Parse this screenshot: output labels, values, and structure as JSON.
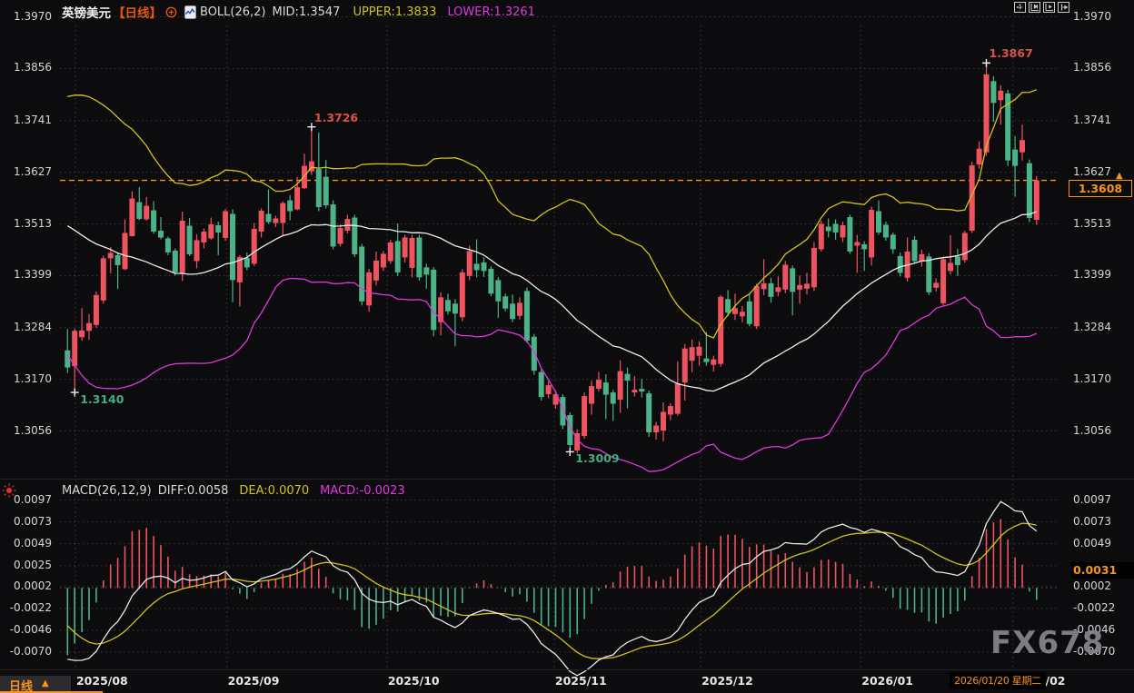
{
  "header": {
    "symbol": "英镑美元",
    "period_tag": "【日线】",
    "indicator": "BOLL(26,2)",
    "mid_label": "MID:1.3547",
    "upper_label": "UPPER:1.3833",
    "lower_label": "LOWER:1.3261"
  },
  "toolbar": {
    "icons": [
      "pan-icon",
      "zoom-x-left-icon",
      "zoom-x-play-icon",
      "pan-right-icon"
    ]
  },
  "macd_header": {
    "indicator": "MACD(26,12,9)",
    "diff_label": "DIFF:0.0058",
    "dea_label": "DEA:0.0070",
    "macd_label": "MACD:-0.0023"
  },
  "axes": {
    "price_ticks": [
      "1.3970",
      "1.3856",
      "1.3741",
      "1.3627",
      "1.3513",
      "1.3399",
      "1.3284",
      "1.3170",
      "1.3056"
    ],
    "macd_ticks": [
      "0.0097",
      "0.0073",
      "0.0049",
      "0.0025",
      "0.0002",
      "-0.0022",
      "-0.0046",
      "-0.0070"
    ],
    "months": [
      "2025/08",
      "2025/09",
      "2025/10",
      "2025/11",
      "2025/12",
      "2026/01",
      "2026/02"
    ]
  },
  "markers": {
    "last_price": "1.3608",
    "macd_cursor_value": "0.0031",
    "cursor_date": "2026/01/20 星期二"
  },
  "annotations": [
    {
      "text": "1.3726",
      "index": 34,
      "price": 1.3726,
      "side": "above",
      "tone": "up"
    },
    {
      "text": "1.3140",
      "index": 1,
      "price": 1.314,
      "side": "below",
      "tone": "down"
    },
    {
      "text": "1.3009",
      "index": 70,
      "price": 1.3009,
      "side": "below",
      "tone": "down"
    },
    {
      "text": "1.3867",
      "index": 128,
      "price": 1.3867,
      "side": "above",
      "tone": "up"
    }
  ],
  "footer": {
    "tab_label": "日线",
    "tab_arrow": "▲"
  },
  "watermark": "FX678",
  "colors": {
    "up": "#ef5360",
    "down": "#4cb287",
    "label_up": "#d9504e",
    "label_down": "#42ab85",
    "boll_upper": "#d2c318",
    "boll_mid": "#ededee",
    "boll_lower": "#e036e0",
    "macd_dif": "#e8e8e8",
    "macd_dea": "#cfc21b",
    "accent": "#f7941e",
    "grid": "#3a3a3e",
    "text": "#d6d6d6",
    "bg": "#0c0c0e"
  },
  "chart_data": {
    "type": "candlestick",
    "title": "英镑美元 日线 (GBP/USD daily) with BOLL(26,2); sub-chart MACD(26,12,9)",
    "ohlc": [
      [
        1.3233,
        1.328,
        1.3183,
        1.3195
      ],
      [
        1.3198,
        1.3281,
        1.3139,
        1.3276
      ],
      [
        1.3262,
        1.3326,
        1.3254,
        1.3277
      ],
      [
        1.3276,
        1.3313,
        1.3256,
        1.3293
      ],
      [
        1.3289,
        1.3363,
        1.3283,
        1.3355
      ],
      [
        1.3343,
        1.3442,
        1.3336,
        1.3436
      ],
      [
        1.3436,
        1.3461,
        1.3403,
        1.3448
      ],
      [
        1.3443,
        1.3449,
        1.3368,
        1.3421
      ],
      [
        1.3412,
        1.3522,
        1.341,
        1.3492
      ],
      [
        1.3485,
        1.3584,
        1.3484,
        1.3568
      ],
      [
        1.356,
        1.3593,
        1.352,
        1.3523
      ],
      [
        1.3522,
        1.3571,
        1.3519,
        1.3552
      ],
      [
        1.3542,
        1.3562,
        1.349,
        1.3495
      ],
      [
        1.3497,
        1.3527,
        1.3478,
        1.3482
      ],
      [
        1.348,
        1.3484,
        1.3443,
        1.3449
      ],
      [
        1.3453,
        1.3458,
        1.3398,
        1.3405
      ],
      [
        1.3403,
        1.3539,
        1.3386,
        1.3519
      ],
      [
        1.3508,
        1.3525,
        1.3441,
        1.3445
      ],
      [
        1.343,
        1.3489,
        1.3414,
        1.3476
      ],
      [
        1.3471,
        1.3502,
        1.3458,
        1.3495
      ],
      [
        1.348,
        1.3526,
        1.3477,
        1.3511
      ],
      [
        1.3509,
        1.3517,
        1.3443,
        1.3493
      ],
      [
        1.3481,
        1.3545,
        1.3475,
        1.354
      ],
      [
        1.3534,
        1.3544,
        1.3339,
        1.3388
      ],
      [
        1.3383,
        1.3443,
        1.333,
        1.3439
      ],
      [
        1.3437,
        1.3449,
        1.341,
        1.3416
      ],
      [
        1.3424,
        1.3514,
        1.3419,
        1.3501
      ],
      [
        1.3495,
        1.3546,
        1.3482,
        1.3541
      ],
      [
        1.3534,
        1.3588,
        1.3512,
        1.3516
      ],
      [
        1.3514,
        1.353,
        1.3505,
        1.3524
      ],
      [
        1.3514,
        1.3562,
        1.3487,
        1.3558
      ],
      [
        1.3564,
        1.3575,
        1.352,
        1.354
      ],
      [
        1.3544,
        1.3616,
        1.3542,
        1.3593
      ],
      [
        1.3591,
        1.3667,
        1.3589,
        1.364
      ],
      [
        1.3628,
        1.3726,
        1.362,
        1.365
      ],
      [
        1.3633,
        1.3714,
        1.354,
        1.3549
      ],
      [
        1.3616,
        1.3653,
        1.3546,
        1.3553
      ],
      [
        1.3555,
        1.3564,
        1.3456,
        1.3462
      ],
      [
        1.3468,
        1.3511,
        1.3462,
        1.3503
      ],
      [
        1.3497,
        1.3532,
        1.3491,
        1.3523
      ],
      [
        1.3526,
        1.3532,
        1.3439,
        1.3445
      ],
      [
        1.3462,
        1.3468,
        1.3332,
        1.3341
      ],
      [
        1.3332,
        1.3413,
        1.3318,
        1.3405
      ],
      [
        1.3387,
        1.3451,
        1.3376,
        1.3431
      ],
      [
        1.3416,
        1.3452,
        1.3408,
        1.3446
      ],
      [
        1.343,
        1.3477,
        1.3424,
        1.3471
      ],
      [
        1.3474,
        1.3513,
        1.3397,
        1.3405
      ],
      [
        1.3438,
        1.3488,
        1.3427,
        1.3482
      ],
      [
        1.3415,
        1.3488,
        1.3394,
        1.3481
      ],
      [
        1.3482,
        1.3488,
        1.3387,
        1.3394
      ],
      [
        1.3416,
        1.3424,
        1.3369,
        1.34
      ],
      [
        1.3411,
        1.3417,
        1.3264,
        1.3278
      ],
      [
        1.3295,
        1.3361,
        1.3266,
        1.335
      ],
      [
        1.3344,
        1.3358,
        1.3312,
        1.3319
      ],
      [
        1.3336,
        1.3346,
        1.3242,
        1.3314
      ],
      [
        1.3306,
        1.3412,
        1.3297,
        1.3405
      ],
      [
        1.3397,
        1.3464,
        1.3388,
        1.3452
      ],
      [
        1.3424,
        1.3478,
        1.3394,
        1.341
      ],
      [
        1.3427,
        1.3438,
        1.3395,
        1.3408
      ],
      [
        1.3413,
        1.3419,
        1.3352,
        1.3358
      ],
      [
        1.3388,
        1.3394,
        1.3305,
        1.3341
      ],
      [
        1.3352,
        1.3358,
        1.3319,
        1.3325
      ],
      [
        1.3336,
        1.3356,
        1.3295,
        1.3302
      ],
      [
        1.3309,
        1.335,
        1.3301,
        1.3338
      ],
      [
        1.3364,
        1.3372,
        1.3249,
        1.3254
      ],
      [
        1.3263,
        1.3269,
        1.3179,
        1.3188
      ],
      [
        1.3185,
        1.3191,
        1.3122,
        1.313
      ],
      [
        1.3136,
        1.3165,
        1.3127,
        1.3156
      ],
      [
        1.3113,
        1.3145,
        1.3104,
        1.3136
      ],
      [
        1.313,
        1.3136,
        1.3059,
        1.3067
      ],
      [
        1.309,
        1.3096,
        1.3009,
        1.3024
      ],
      [
        1.3012,
        1.3059,
        1.3006,
        1.305
      ],
      [
        1.3044,
        1.314,
        1.3038,
        1.3132
      ],
      [
        1.3115,
        1.3166,
        1.3091,
        1.3154
      ],
      [
        1.3148,
        1.3185,
        1.3142,
        1.3168
      ],
      [
        1.3162,
        1.318,
        1.3081,
        1.3135
      ],
      [
        1.314,
        1.3146,
        1.3077,
        1.3115
      ],
      [
        1.3124,
        1.3211,
        1.3095,
        1.3187
      ],
      [
        1.3181,
        1.3195,
        1.3105,
        1.3166
      ],
      [
        1.314,
        1.3176,
        1.3131,
        1.3146
      ],
      [
        1.3148,
        1.317,
        1.3129,
        1.3142
      ],
      [
        1.3138,
        1.3144,
        1.3042,
        1.3052
      ],
      [
        1.3052,
        1.3075,
        1.3036,
        1.3067
      ],
      [
        1.3056,
        1.3118,
        1.3032,
        1.3097
      ],
      [
        1.3091,
        1.3116,
        1.3079,
        1.311
      ],
      [
        1.3093,
        1.3209,
        1.3089,
        1.316
      ],
      [
        1.3162,
        1.3247,
        1.3122,
        1.3237
      ],
      [
        1.321,
        1.3257,
        1.3185,
        1.324
      ],
      [
        1.3221,
        1.3253,
        1.3199,
        1.3241
      ],
      [
        1.3215,
        1.3273,
        1.3199,
        1.3207
      ],
      [
        1.3201,
        1.3221,
        1.3186,
        1.3213
      ],
      [
        1.3203,
        1.3355,
        1.3197,
        1.3351
      ],
      [
        1.3346,
        1.3366,
        1.3308,
        1.3316
      ],
      [
        1.3313,
        1.3358,
        1.33,
        1.3326
      ],
      [
        1.3308,
        1.3331,
        1.3295,
        1.3318
      ],
      [
        1.3341,
        1.3356,
        1.3286,
        1.3291
      ],
      [
        1.3286,
        1.338,
        1.328,
        1.3375
      ],
      [
        1.3368,
        1.3434,
        1.3355,
        1.3381
      ],
      [
        1.3381,
        1.3393,
        1.3338,
        1.3351
      ],
      [
        1.3362,
        1.3396,
        1.3352,
        1.3372
      ],
      [
        1.3367,
        1.343,
        1.3359,
        1.3422
      ],
      [
        1.3414,
        1.342,
        1.331,
        1.3362
      ],
      [
        1.3367,
        1.3398,
        1.3336,
        1.3377
      ],
      [
        1.3369,
        1.3404,
        1.3356,
        1.338
      ],
      [
        1.3372,
        1.3472,
        1.3364,
        1.3459
      ],
      [
        1.3456,
        1.3519,
        1.3451,
        1.3512
      ],
      [
        1.3506,
        1.3524,
        1.3482,
        1.3496
      ],
      [
        1.3512,
        1.3522,
        1.3477,
        1.3493
      ],
      [
        1.3482,
        1.3517,
        1.3472,
        1.3509
      ],
      [
        1.3527,
        1.3532,
        1.3446,
        1.3451
      ],
      [
        1.3464,
        1.3488,
        1.3404,
        1.3472
      ],
      [
        1.3467,
        1.3474,
        1.3408,
        1.3456
      ],
      [
        1.3438,
        1.355,
        1.342,
        1.3543
      ],
      [
        1.354,
        1.3564,
        1.3488,
        1.3493
      ],
      [
        1.351,
        1.3517,
        1.3475,
        1.3482
      ],
      [
        1.3488,
        1.3493,
        1.3446,
        1.3456
      ],
      [
        1.3441,
        1.3449,
        1.3396,
        1.3404
      ],
      [
        1.3393,
        1.3482,
        1.3385,
        1.3451
      ],
      [
        1.3477,
        1.3485,
        1.3424,
        1.343
      ],
      [
        1.3429,
        1.3455,
        1.3418,
        1.3445
      ],
      [
        1.344,
        1.3447,
        1.3355,
        1.3361
      ],
      [
        1.3371,
        1.3392,
        1.3363,
        1.3382
      ],
      [
        1.3337,
        1.344,
        1.3332,
        1.3434
      ],
      [
        1.3408,
        1.3487,
        1.34,
        1.3426
      ],
      [
        1.344,
        1.3457,
        1.3397,
        1.3421
      ],
      [
        1.3432,
        1.3497,
        1.3426,
        1.3492
      ],
      [
        1.3497,
        1.3649,
        1.3492,
        1.3641
      ],
      [
        1.3643,
        1.3694,
        1.3634,
        1.3678
      ],
      [
        1.367,
        1.3867,
        1.3662,
        1.3842
      ],
      [
        1.3827,
        1.3838,
        1.3737,
        1.3779
      ],
      [
        1.3785,
        1.3818,
        1.3731,
        1.3806
      ],
      [
        1.38,
        1.3808,
        1.364,
        1.3652
      ],
      [
        1.3676,
        1.3706,
        1.3572,
        1.364
      ],
      [
        1.367,
        1.3731,
        1.3652,
        1.3697
      ],
      [
        1.3646,
        1.3654,
        1.3516,
        1.3525
      ],
      [
        1.3521,
        1.3618,
        1.351,
        1.3608
      ]
    ],
    "preroll_closes": [
      1.347,
      1.347,
      1.347,
      1.347,
      1.347,
      1.347,
      1.347,
      1.347,
      1.347,
      1.347,
      1.347,
      1.347,
      1.347,
      1.347,
      1.347,
      1.347,
      1.347,
      1.347,
      1.347,
      1.347,
      1.347,
      1.347,
      1.347,
      1.347,
      1.347,
      1.347,
      1.347,
      1.3484,
      1.3498,
      1.3512,
      1.3526,
      1.354,
      1.3554,
      1.3568,
      1.3582,
      1.3596,
      1.361,
      1.3624,
      1.3638,
      1.3652,
      1.3666,
      1.368,
      1.368,
      1.3642,
      1.3604,
      1.3567,
      1.3529,
      1.3491,
      1.3453,
      1.3416,
      1.3378,
      1.334,
      1.334,
      1.3313,
      1.3287,
      1.326
    ],
    "indicators": {
      "boll": {
        "period": 26,
        "mult": 2
      },
      "macd": {
        "fast": 12,
        "slow": 26,
        "signal": 9
      }
    },
    "price_ylim": [
      1.2942,
      1.397
    ],
    "macd_ylim": [
      -0.0092,
      0.0097
    ],
    "month_line_indices": [
      1.1,
      22.2,
      44.5,
      67.8,
      88.2,
      110.5,
      131.7
    ],
    "last_close": 1.3608
  }
}
